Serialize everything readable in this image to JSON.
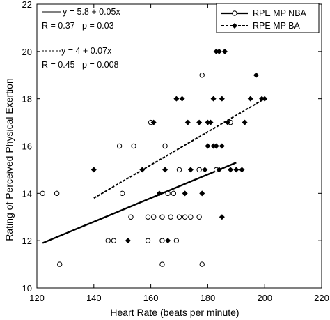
{
  "chart_data": {
    "type": "scatter",
    "xlabel": "Heart Rate (beats per minute)",
    "ylabel": "Rating of Perceived Physical Exertion",
    "xlim": [
      120,
      220
    ],
    "ylim": [
      10,
      22
    ],
    "x_ticks": [
      120,
      140,
      160,
      180,
      200,
      220
    ],
    "y_ticks": [
      10,
      12,
      14,
      16,
      18,
      20,
      22
    ],
    "legend_position": "top-right",
    "grid": false,
    "series": [
      {
        "name": "RPE MP NBA",
        "marker": "open-circle",
        "line_style": "solid",
        "color": "#000000",
        "points": [
          [
            122,
            14
          ],
          [
            127,
            14
          ],
          [
            128,
            11
          ],
          [
            145,
            12
          ],
          [
            147,
            12
          ],
          [
            149,
            16
          ],
          [
            150,
            14
          ],
          [
            153,
            13
          ],
          [
            154,
            16
          ],
          [
            159,
            12
          ],
          [
            159,
            13
          ],
          [
            160,
            17
          ],
          [
            161,
            13
          ],
          [
            164,
            12
          ],
          [
            164,
            13
          ],
          [
            164,
            11
          ],
          [
            165,
            16
          ],
          [
            166,
            14
          ],
          [
            167,
            13
          ],
          [
            168,
            14
          ],
          [
            169,
            12
          ],
          [
            170,
            13
          ],
          [
            170,
            15
          ],
          [
            172,
            13
          ],
          [
            174,
            13
          ],
          [
            177,
            13
          ],
          [
            177,
            15
          ],
          [
            178,
            11
          ],
          [
            178,
            19
          ],
          [
            183,
            15
          ],
          [
            188,
            17
          ]
        ],
        "fit": {
          "x_range": [
            122,
            190
          ]
        }
      },
      {
        "name": "RPE MP BA",
        "marker": "filled-diamond",
        "line_style": "dashed",
        "color": "#000000",
        "points": [
          [
            140,
            15
          ],
          [
            152,
            12
          ],
          [
            157,
            15
          ],
          [
            161,
            17
          ],
          [
            163,
            14
          ],
          [
            165,
            15
          ],
          [
            166,
            12
          ],
          [
            169,
            18
          ],
          [
            171,
            18
          ],
          [
            172,
            14
          ],
          [
            173,
            17
          ],
          [
            174,
            15
          ],
          [
            177,
            17
          ],
          [
            178,
            14
          ],
          [
            179,
            15
          ],
          [
            180,
            16
          ],
          [
            180,
            17
          ],
          [
            181,
            17
          ],
          [
            182,
            18
          ],
          [
            182,
            16
          ],
          [
            183,
            16
          ],
          [
            183,
            20
          ],
          [
            184,
            20
          ],
          [
            184,
            15
          ],
          [
            185,
            16
          ],
          [
            185,
            18
          ],
          [
            185,
            13
          ],
          [
            186,
            20
          ],
          [
            187,
            17
          ],
          [
            188,
            15
          ],
          [
            190,
            15
          ],
          [
            192,
            15
          ],
          [
            193,
            17
          ],
          [
            195,
            18
          ],
          [
            197,
            19
          ],
          [
            199,
            18
          ],
          [
            200,
            18
          ]
        ],
        "fit": {
          "x_range": [
            140,
            200
          ]
        }
      }
    ],
    "annotations": [
      {
        "series": "RPE MP NBA",
        "equation": "y = 5.8 + 0.05x",
        "stats": "R = 0.37   p = 0.03"
      },
      {
        "series": "RPE MP BA",
        "equation": "y = 4 + 0.07x",
        "stats": "R = 0.45   p = 0.008"
      }
    ]
  }
}
